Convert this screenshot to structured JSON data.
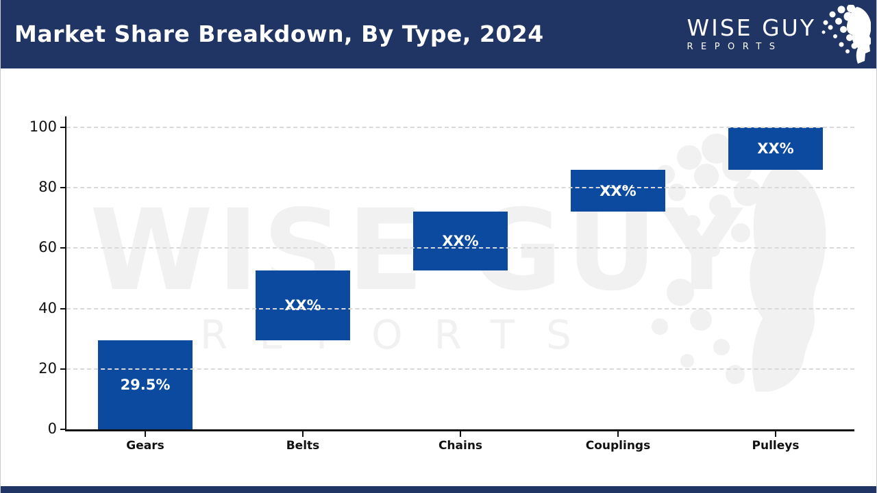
{
  "header": {
    "title": "Market Share Breakdown, By Type, 2024",
    "bg_color": "#213564",
    "logo": {
      "line1": "WISE GUY",
      "line2": "REPORTS"
    }
  },
  "watermark": {
    "line1": "WISE GUY",
    "line2": "REPORTS"
  },
  "footer": {
    "bg_color": "#213564"
  },
  "colors": {
    "bar": "#0b4a9e",
    "bar_label": "#ffffff",
    "gridline": "#d9d9d9",
    "axis": "#111111",
    "watermark": "#f1f1f1"
  },
  "chart_data": {
    "type": "bar",
    "subtype": "floating-waterfall",
    "title": "Market Share Breakdown, By Type, 2024",
    "categories": [
      "Gears",
      "Belts",
      "Chains",
      "Couplings",
      "Pulleys"
    ],
    "segments": [
      {
        "category": "Gears",
        "start": 0,
        "end": 29.5,
        "label": "29.5%"
      },
      {
        "category": "Belts",
        "start": 29.5,
        "end": 52.5,
        "label": "XX%"
      },
      {
        "category": "Chains",
        "start": 52.5,
        "end": 72,
        "label": "XX%"
      },
      {
        "category": "Couplings",
        "start": 72,
        "end": 86,
        "label": "XX%"
      },
      {
        "category": "Pulleys",
        "start": 86,
        "end": 100,
        "label": "XX%"
      }
    ],
    "ylim": [
      0,
      100
    ],
    "yticks": [
      0,
      20,
      40,
      60,
      80,
      100
    ],
    "xlabel": "",
    "ylabel": "",
    "grid": "horizontal-dashed",
    "legend": "none"
  }
}
